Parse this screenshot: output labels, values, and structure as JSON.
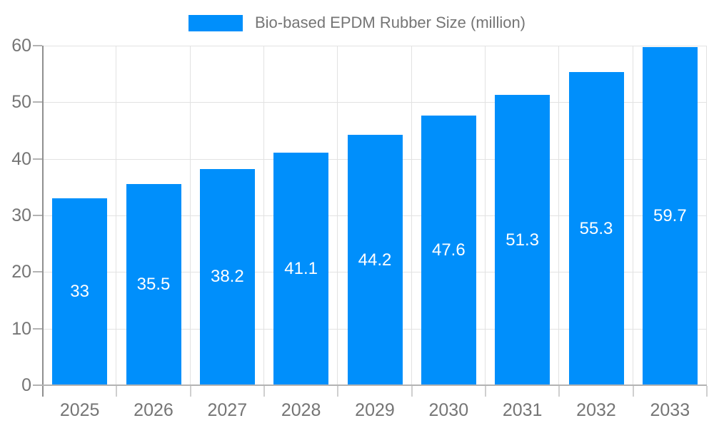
{
  "legend": {
    "label": "Bio-based EPDM Rubber Size (million)"
  },
  "colors": {
    "bar": "#008FFB",
    "grid": "#e2e2e2",
    "axis_line": "#8f8f8f",
    "baseline": "#b3b3b3",
    "axis_text": "#757575",
    "value_text": "#ffffff",
    "background": "#ffffff"
  },
  "chart_data": {
    "type": "bar",
    "title": "Bio-based EPDM Rubber Size (million)",
    "categories": [
      "2025",
      "2026",
      "2027",
      "2028",
      "2029",
      "2030",
      "2031",
      "2032",
      "2033"
    ],
    "values": [
      33,
      35.5,
      38.2,
      41.1,
      44.2,
      47.6,
      51.3,
      55.3,
      59.7
    ],
    "value_labels": [
      "33",
      "35.5",
      "38.2",
      "41.1",
      "44.2",
      "47.6",
      "51.3",
      "55.3",
      "59.7"
    ],
    "xlabel": "",
    "ylabel": "",
    "y_ticks": [
      0,
      10,
      20,
      30,
      40,
      50,
      60
    ],
    "y_tick_labels": [
      "0",
      "10",
      "20",
      "30",
      "40",
      "50",
      "60"
    ],
    "ylim": [
      0,
      60
    ],
    "grid": true,
    "legend_position": "top",
    "value_label_position": "center-inside"
  }
}
